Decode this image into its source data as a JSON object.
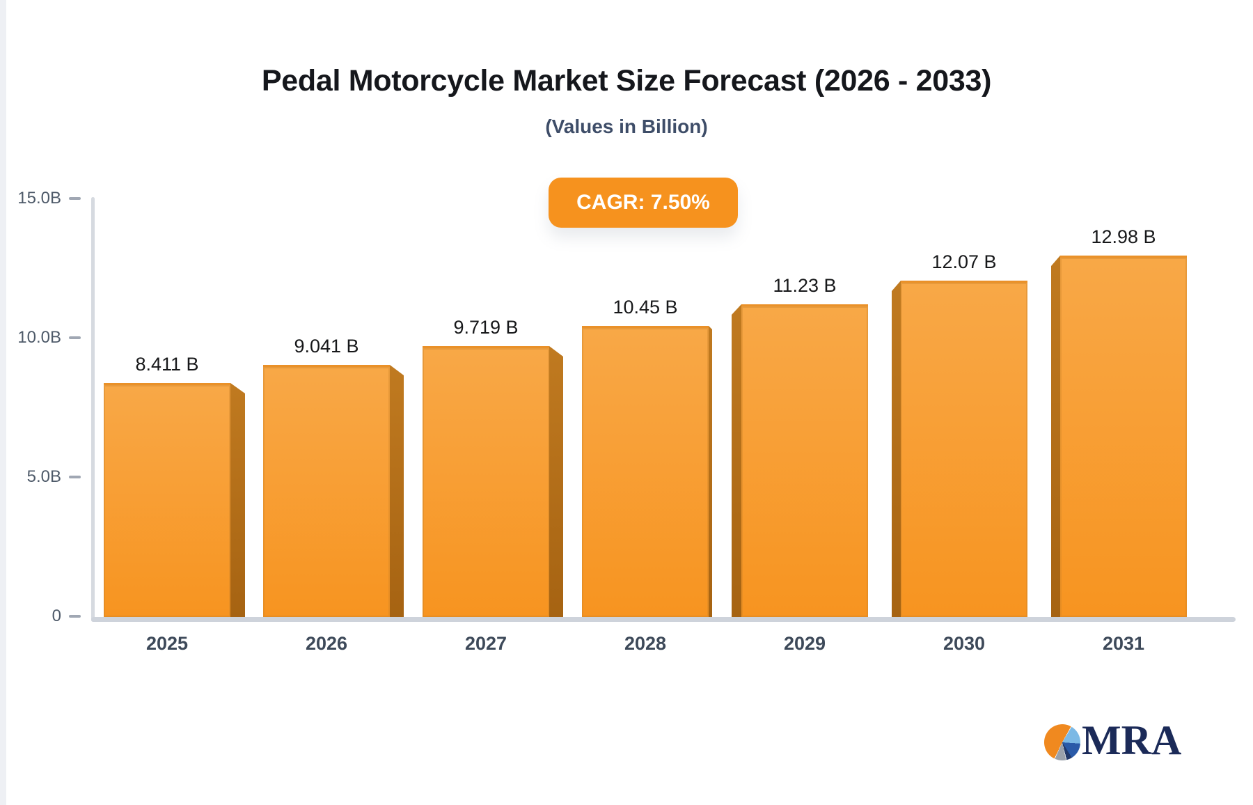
{
  "page": {
    "title": "Pedal Motorcycle Market Size Forecast (2026 - 2033)",
    "subtitle": "(Values in Billion)",
    "cagr_badge": "CAGR: 7.50%"
  },
  "chart_data": {
    "type": "bar",
    "title": "Pedal Motorcycle Market Size Forecast (2026 - 2033)",
    "subtitle": "(Values in Billion)",
    "cagr_annotation": "CAGR: 7.50%",
    "unit": "Billion",
    "categories": [
      "2025",
      "2026",
      "2027",
      "2028",
      "2029",
      "2030",
      "2031"
    ],
    "values": [
      8.411,
      9.041,
      9.719,
      10.45,
      11.23,
      12.07,
      12.98
    ],
    "value_labels": [
      "8.411 B",
      "9.041 B",
      "9.719 B",
      "10.45 B",
      "11.23 B",
      "12.07 B",
      "12.98 B"
    ],
    "y_axis": {
      "ticks": [
        "15.0B",
        "10.0B",
        "5.0B",
        "0"
      ],
      "tick_values": [
        15,
        10,
        5,
        0
      ],
      "ylim": [
        0,
        15
      ],
      "grid": false
    },
    "legend": "none",
    "colors": {
      "bar_top": "#f8a847",
      "bar_bottom": "#f79420",
      "bar_side": "#b5701a",
      "accent_orange": "#f6921e",
      "axis_line": "#ced3db",
      "tick_text": "#4e5a69",
      "category_text": "#3d4959",
      "value_text": "#17181a"
    }
  },
  "logo": {
    "text": "MRA",
    "text_color": "#1b2a58",
    "pie_colors": [
      "#f0891f",
      "#7cb9e5",
      "#2a5aa8",
      "#9aa1ab"
    ]
  }
}
